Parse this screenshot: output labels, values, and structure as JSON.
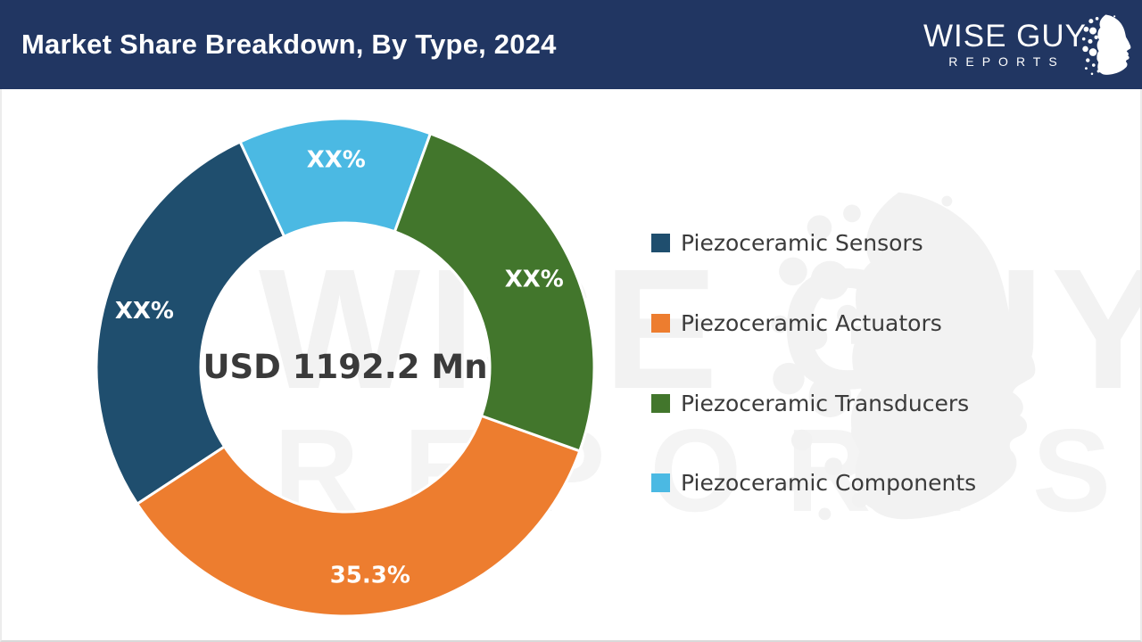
{
  "header": {
    "title": "Market Share Breakdown, By Type, 2024",
    "logo": {
      "name": "WISE GUY",
      "subtitle": "REPORTS"
    }
  },
  "watermark": {
    "line1": "WISE GUY",
    "line2": "REPORTS"
  },
  "chart_data": {
    "type": "pie",
    "subtype": "donut",
    "title": "Market Share Breakdown, By Type, 2024",
    "center_label": "USD 1192.2 Mn",
    "legend_position": "right",
    "segments": [
      {
        "label": "Piezoceramic Sensors",
        "value_label": "XX%",
        "percent": 27.3,
        "color": "#1F4E6E"
      },
      {
        "label": "Piezoceramic Actuators",
        "value_label": "35.3%",
        "percent": 35.3,
        "color": "#ED7D2F"
      },
      {
        "label": "Piezoceramic Transducers",
        "value_label": "XX%",
        "percent": 24.9,
        "color": "#42762C"
      },
      {
        "label": "Piezoceramic Components",
        "value_label": "XX%",
        "percent": 12.5,
        "color": "#4BB9E3"
      }
    ],
    "draw": {
      "start_angle_deg": 70,
      "direction": "ccw",
      "order": [
        3,
        0,
        1,
        2
      ]
    }
  },
  "colors": {
    "header_bg": "#213662",
    "chart_text": "#3A3A3A",
    "legend_text": "#3B3B3B",
    "segment_label_text": "#FFFFFF",
    "watermark": "#F2F2F2",
    "border_line": "#D9D9D9"
  }
}
